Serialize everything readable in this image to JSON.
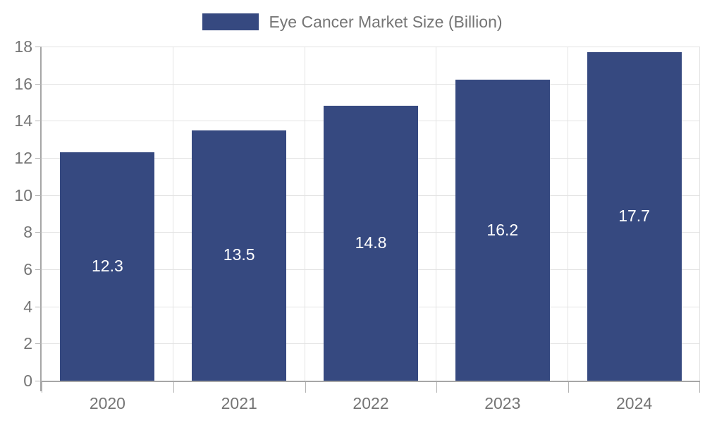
{
  "legend": {
    "label": "Eye Cancer Market Size (Billion)"
  },
  "chart_data": {
    "type": "bar",
    "title": "Eye Cancer Market Size (Billion)",
    "series_name": "Eye Cancer Market Size (Billion)",
    "categories": [
      "2020",
      "2021",
      "2022",
      "2023",
      "2024"
    ],
    "values": [
      12.3,
      13.5,
      14.8,
      16.2,
      17.7
    ],
    "value_labels": [
      "12.3",
      "13.5",
      "14.8",
      "16.2",
      "17.7"
    ],
    "xlabel": "",
    "ylabel": "",
    "ylim": [
      0,
      18
    ],
    "ytick_step": 2,
    "yticks": [
      0,
      2,
      4,
      6,
      8,
      10,
      12,
      14,
      16,
      18
    ],
    "grid": true,
    "legend_position": "top-center",
    "value_label_position": "inside-center",
    "colors": {
      "bar": "#364980",
      "value_label": "#ffffff",
      "axis_text": "#757575",
      "legend_text": "#757575",
      "grid_line": "#e3e3e3",
      "axis_line": "#a6a6a6",
      "tick_line": "#b3b3b3",
      "background": "#ffffff"
    }
  }
}
